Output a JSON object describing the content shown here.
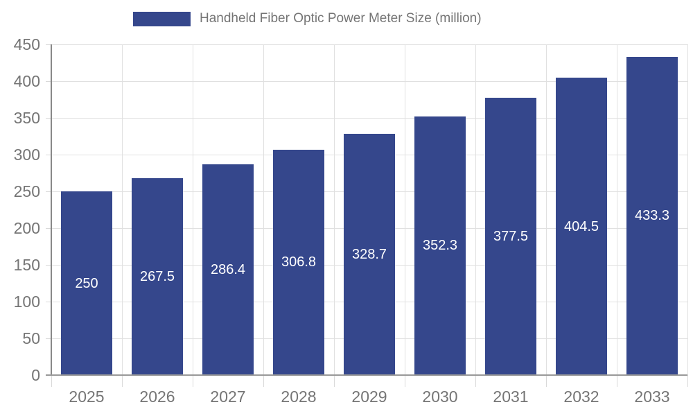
{
  "chart_data": {
    "type": "bar",
    "title": "Handheld Fiber Optic Power Meter Size (million)",
    "categories": [
      "2025",
      "2026",
      "2027",
      "2028",
      "2029",
      "2030",
      "2031",
      "2032",
      "2033"
    ],
    "values": [
      250,
      267.5,
      286.4,
      306.8,
      328.7,
      352.3,
      377.5,
      404.5,
      433.3
    ],
    "value_labels": [
      "250",
      "267.5",
      "286.4",
      "306.8",
      "328.7",
      "352.3",
      "377.5",
      "404.5",
      "433.3"
    ],
    "xlabel": "",
    "ylabel": "",
    "ylim": [
      0,
      450
    ],
    "ytick_step": 50,
    "ytick_labels": [
      "0",
      "50",
      "100",
      "150",
      "200",
      "250",
      "300",
      "350",
      "400",
      "450"
    ],
    "grid": true,
    "legend_position": "top",
    "value_label_position": "inside-center",
    "colors": {
      "bar": "#35478C",
      "axis_label": "#757575",
      "legend_text": "#757575",
      "grid_line": "#E0E0E0",
      "axis_line_y": "#888888",
      "axis_line_x": "#999999",
      "value_label": "#FFFFFF",
      "background": "#FFFFFF"
    }
  }
}
